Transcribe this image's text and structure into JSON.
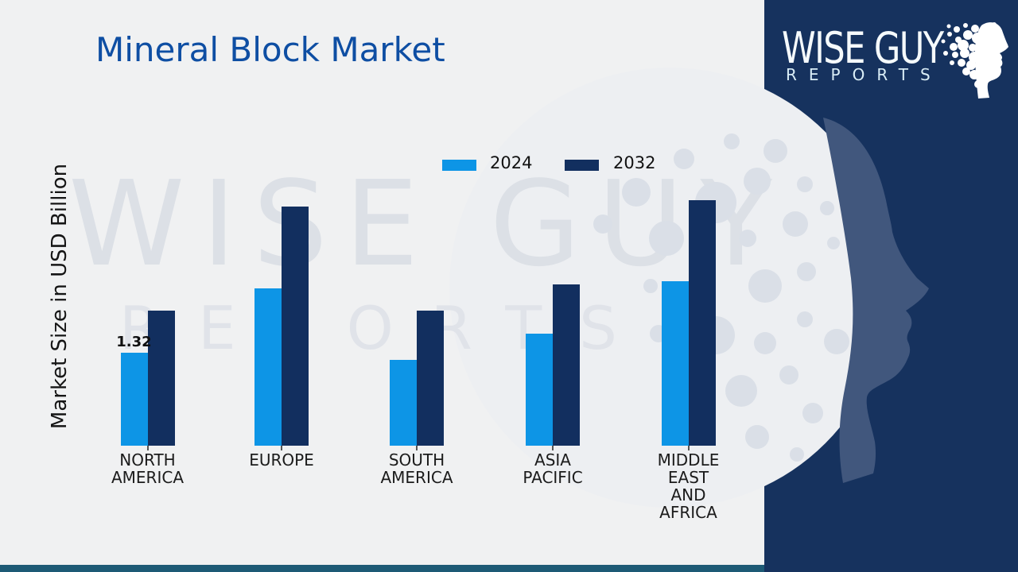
{
  "page": {
    "background": "#f0f1f2"
  },
  "title": {
    "text": "Mineral Block Market",
    "color": "#0e4ea3"
  },
  "y_axis_label": "Market Size in USD Billion",
  "watermark": {
    "line1": "WISE GUY",
    "line2": "REPORTS"
  },
  "logo": {
    "line1": "WISE GUY",
    "line2": "REPORTS",
    "panel_color": "#16325e",
    "text_color": "#f5fafc"
  },
  "artwork": {
    "circle_color": "#edeff2",
    "dot_color": "#dadfe7",
    "face_color": "#41577d"
  },
  "footer": {
    "bar_color": "#1d5a75"
  },
  "chart_data": {
    "type": "bar",
    "title": "Mineral Block Market",
    "xlabel": "",
    "ylabel": "Market Size in USD Billion",
    "categories": [
      "NORTH AMERICA",
      "EUROPE",
      "SOUTH AMERICA",
      "ASIA PACIFIC",
      "MIDDLE EAST AND AFRICA"
    ],
    "series": [
      {
        "name": "2024",
        "color": "#0d95e6",
        "values": [
          1.32,
          2.23,
          1.22,
          1.59,
          2.33
        ]
      },
      {
        "name": "2032",
        "color": "#122f5f",
        "values": [
          1.92,
          3.4,
          1.92,
          2.29,
          3.49
        ]
      }
    ],
    "data_labels": [
      {
        "category": "NORTH AMERICA",
        "series": "2024",
        "text": "1.32"
      }
    ],
    "units": "USD Billion",
    "legend_position": "top-center",
    "grid": false,
    "y_axis_ticks_visible": false,
    "ylim": [
      0,
      3.8
    ]
  }
}
